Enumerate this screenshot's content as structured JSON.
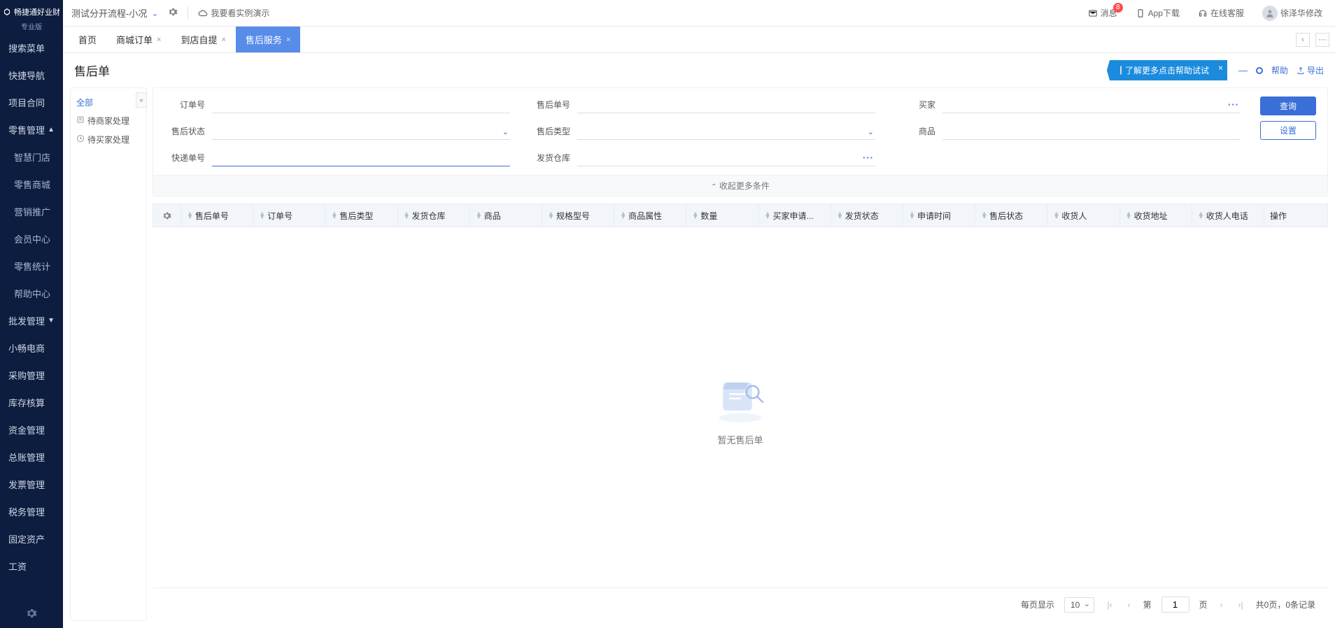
{
  "brand": {
    "name": "畅捷通好业财",
    "edition": "专业版"
  },
  "sidebar": {
    "items": [
      {
        "label": "搜索菜单",
        "sub": false
      },
      {
        "label": "快捷导航",
        "sub": false
      },
      {
        "label": "项目合同",
        "sub": false
      },
      {
        "label": "零售管理",
        "sub": false,
        "caret": "▲"
      },
      {
        "label": "智慧门店",
        "sub": true
      },
      {
        "label": "零售商城",
        "sub": true
      },
      {
        "label": "营销推广",
        "sub": true
      },
      {
        "label": "会员中心",
        "sub": true
      },
      {
        "label": "零售统计",
        "sub": true
      },
      {
        "label": "帮助中心",
        "sub": true
      },
      {
        "label": "批发管理",
        "sub": false,
        "caret": "▼"
      },
      {
        "label": "小畅电商",
        "sub": false
      },
      {
        "label": "采购管理",
        "sub": false
      },
      {
        "label": "库存核算",
        "sub": false
      },
      {
        "label": "资金管理",
        "sub": false
      },
      {
        "label": "总账管理",
        "sub": false
      },
      {
        "label": "发票管理",
        "sub": false
      },
      {
        "label": "税务管理",
        "sub": false
      },
      {
        "label": "固定资产",
        "sub": false
      },
      {
        "label": "工资",
        "sub": false
      }
    ]
  },
  "topbar": {
    "biz": "测试分开流程-小况",
    "demo": "我要看实例演示",
    "msg": "消息",
    "msg_badge": "8",
    "app": "App下载",
    "cs": "在线客服",
    "user": "徐泽华修改"
  },
  "tabs": [
    {
      "label": "首页",
      "closable": false
    },
    {
      "label": "商城订单",
      "closable": true
    },
    {
      "label": "到店自提",
      "closable": true
    },
    {
      "label": "售后服务",
      "closable": true,
      "active": true
    }
  ],
  "page": {
    "title": "售后单",
    "help_banner": "┃了解更多点击帮助试试",
    "help_link": "帮助",
    "export_link": "导出"
  },
  "filter_side": {
    "all": "全部",
    "items": [
      "待商家处理",
      "待买家处理"
    ]
  },
  "search": {
    "fields": {
      "order_no": "订单号",
      "after_no": "售后单号",
      "buyer": "买家",
      "after_status": "售后状态",
      "after_type": "售后类型",
      "goods": "商品",
      "express_no": "快递单号",
      "warehouse": "发货仓库"
    },
    "btn_query": "查询",
    "btn_setting": "设置",
    "collapse": "收起更多条件"
  },
  "table": {
    "columns": [
      "售后单号",
      "订单号",
      "售后类型",
      "发货仓库",
      "商品",
      "规格型号",
      "商品属性",
      "数量",
      "买家申请...",
      "发货状态",
      "申请时间",
      "售后状态",
      "收货人",
      "收货地址",
      "收货人电话",
      "操作"
    ],
    "empty": "暂无售后单"
  },
  "pager": {
    "per_page_label": "每页显示",
    "per_page": "10",
    "page_prefix": "第",
    "page": "1",
    "page_suffix": "页",
    "total": "共0页，0条记录"
  },
  "colors": {
    "sidebar_bg": "#0d1d40",
    "primary": "#3a6fd8",
    "tab_active": "#588ce9",
    "banner": "#1b8bdd",
    "badge": "#ff4d4f",
    "thead_bg": "#f2f5fa"
  }
}
